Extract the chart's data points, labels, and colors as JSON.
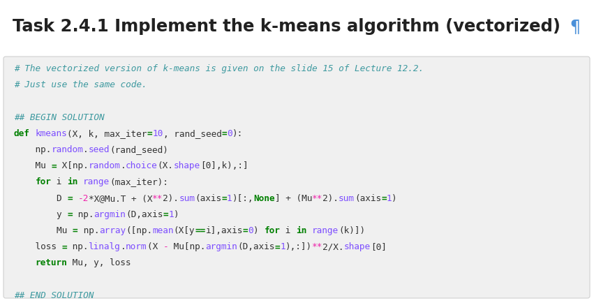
{
  "title": "Task 2.4.1 Implement the k-means algorithm (vectorized)",
  "pilcrow": " ¶",
  "title_color": "#212121",
  "pilcrow_color": "#4a90d9",
  "bg_color": "#ffffff",
  "code_bg_color": "#f0f0f0",
  "fig_width": 8.51,
  "fig_height": 4.34,
  "code_lines": [
    {
      "parts": [
        {
          "text": "# The vectorized version of k-means is given on the slide 15 of Lecture 12.2.",
          "color": "#3d999f",
          "style": "italic"
        }
      ]
    },
    {
      "parts": [
        {
          "text": "# Just use the same code.",
          "color": "#3d999f",
          "style": "italic"
        }
      ]
    },
    {
      "parts": []
    },
    {
      "parts": [
        {
          "text": "## BEGIN SOLUTION",
          "color": "#3d999f",
          "style": "italic"
        }
      ]
    },
    {
      "parts": [
        {
          "text": "def",
          "color": "#008000",
          "style": "bold"
        },
        {
          "text": " ",
          "color": "#333333",
          "style": "normal"
        },
        {
          "text": "kmeans",
          "color": "#7c4dff",
          "style": "normal"
        },
        {
          "text": "(X, k, max_iter",
          "color": "#333333",
          "style": "normal"
        },
        {
          "text": "=",
          "color": "#008000",
          "style": "bold"
        },
        {
          "text": "10",
          "color": "#7c4dff",
          "style": "normal"
        },
        {
          "text": ", rand_seed",
          "color": "#333333",
          "style": "normal"
        },
        {
          "text": "=",
          "color": "#008000",
          "style": "bold"
        },
        {
          "text": "0",
          "color": "#7c4dff",
          "style": "normal"
        },
        {
          "text": "):",
          "color": "#333333",
          "style": "normal"
        }
      ]
    },
    {
      "parts": [
        {
          "text": "    np.",
          "color": "#333333",
          "style": "normal"
        },
        {
          "text": "random",
          "color": "#7c4dff",
          "style": "normal"
        },
        {
          "text": ".",
          "color": "#333333",
          "style": "normal"
        },
        {
          "text": "seed",
          "color": "#7c4dff",
          "style": "normal"
        },
        {
          "text": "(rand_seed)",
          "color": "#333333",
          "style": "normal"
        }
      ]
    },
    {
      "parts": [
        {
          "text": "    Mu ",
          "color": "#333333",
          "style": "normal"
        },
        {
          "text": "=",
          "color": "#008000",
          "style": "bold"
        },
        {
          "text": " X[np.",
          "color": "#333333",
          "style": "normal"
        },
        {
          "text": "random",
          "color": "#7c4dff",
          "style": "normal"
        },
        {
          "text": ".",
          "color": "#333333",
          "style": "normal"
        },
        {
          "text": "choice",
          "color": "#7c4dff",
          "style": "normal"
        },
        {
          "text": "(X.",
          "color": "#333333",
          "style": "normal"
        },
        {
          "text": "shape",
          "color": "#7c4dff",
          "style": "normal"
        },
        {
          "text": "[0],k),:]",
          "color": "#333333",
          "style": "normal"
        }
      ]
    },
    {
      "parts": [
        {
          "text": "    ",
          "color": "#333333",
          "style": "normal"
        },
        {
          "text": "for",
          "color": "#008000",
          "style": "bold"
        },
        {
          "text": " i ",
          "color": "#333333",
          "style": "normal"
        },
        {
          "text": "in",
          "color": "#008000",
          "style": "bold"
        },
        {
          "text": " ",
          "color": "#333333",
          "style": "normal"
        },
        {
          "text": "range",
          "color": "#7c4dff",
          "style": "normal"
        },
        {
          "text": "(max_iter):",
          "color": "#333333",
          "style": "normal"
        }
      ]
    },
    {
      "parts": [
        {
          "text": "        D ",
          "color": "#333333",
          "style": "normal"
        },
        {
          "text": "=",
          "color": "#008000",
          "style": "bold"
        },
        {
          "text": " ",
          "color": "#333333",
          "style": "normal"
        },
        {
          "text": "-2",
          "color": "#ee22aa",
          "style": "normal"
        },
        {
          "text": "*X@Mu.T + (X",
          "color": "#333333",
          "style": "normal"
        },
        {
          "text": "**",
          "color": "#ee22aa",
          "style": "normal"
        },
        {
          "text": "2).",
          "color": "#333333",
          "style": "normal"
        },
        {
          "text": "sum",
          "color": "#7c4dff",
          "style": "normal"
        },
        {
          "text": "(axis",
          "color": "#333333",
          "style": "normal"
        },
        {
          "text": "=",
          "color": "#008000",
          "style": "bold"
        },
        {
          "text": "1",
          "color": "#7c4dff",
          "style": "normal"
        },
        {
          "text": ")[:,",
          "color": "#333333",
          "style": "normal"
        },
        {
          "text": "None",
          "color": "#008000",
          "style": "bold"
        },
        {
          "text": "] + (Mu",
          "color": "#333333",
          "style": "normal"
        },
        {
          "text": "**",
          "color": "#ee22aa",
          "style": "normal"
        },
        {
          "text": "2).",
          "color": "#333333",
          "style": "normal"
        },
        {
          "text": "sum",
          "color": "#7c4dff",
          "style": "normal"
        },
        {
          "text": "(axis",
          "color": "#333333",
          "style": "normal"
        },
        {
          "text": "=",
          "color": "#008000",
          "style": "bold"
        },
        {
          "text": "1",
          "color": "#7c4dff",
          "style": "normal"
        },
        {
          "text": ")",
          "color": "#333333",
          "style": "normal"
        }
      ]
    },
    {
      "parts": [
        {
          "text": "        y ",
          "color": "#333333",
          "style": "normal"
        },
        {
          "text": "=",
          "color": "#008000",
          "style": "bold"
        },
        {
          "text": " np.",
          "color": "#333333",
          "style": "normal"
        },
        {
          "text": "argmin",
          "color": "#7c4dff",
          "style": "normal"
        },
        {
          "text": "(D,axis",
          "color": "#333333",
          "style": "normal"
        },
        {
          "text": "=",
          "color": "#008000",
          "style": "bold"
        },
        {
          "text": "1",
          "color": "#7c4dff",
          "style": "normal"
        },
        {
          "text": ")",
          "color": "#333333",
          "style": "normal"
        }
      ]
    },
    {
      "parts": [
        {
          "text": "        Mu ",
          "color": "#333333",
          "style": "normal"
        },
        {
          "text": "=",
          "color": "#008000",
          "style": "bold"
        },
        {
          "text": " np.",
          "color": "#333333",
          "style": "normal"
        },
        {
          "text": "array",
          "color": "#7c4dff",
          "style": "normal"
        },
        {
          "text": "([np.",
          "color": "#333333",
          "style": "normal"
        },
        {
          "text": "mean",
          "color": "#7c4dff",
          "style": "normal"
        },
        {
          "text": "(X[y",
          "color": "#333333",
          "style": "normal"
        },
        {
          "text": "==",
          "color": "#008000",
          "style": "bold"
        },
        {
          "text": "i],axis",
          "color": "#333333",
          "style": "normal"
        },
        {
          "text": "=",
          "color": "#008000",
          "style": "bold"
        },
        {
          "text": "0",
          "color": "#7c4dff",
          "style": "normal"
        },
        {
          "text": ") ",
          "color": "#333333",
          "style": "normal"
        },
        {
          "text": "for",
          "color": "#008000",
          "style": "bold"
        },
        {
          "text": " i ",
          "color": "#333333",
          "style": "normal"
        },
        {
          "text": "in",
          "color": "#008000",
          "style": "bold"
        },
        {
          "text": " ",
          "color": "#333333",
          "style": "normal"
        },
        {
          "text": "range",
          "color": "#7c4dff",
          "style": "normal"
        },
        {
          "text": "(k)])",
          "color": "#333333",
          "style": "normal"
        }
      ]
    },
    {
      "parts": [
        {
          "text": "    loss ",
          "color": "#333333",
          "style": "normal"
        },
        {
          "text": "=",
          "color": "#008000",
          "style": "bold"
        },
        {
          "text": " np.",
          "color": "#333333",
          "style": "normal"
        },
        {
          "text": "linalg",
          "color": "#7c4dff",
          "style": "normal"
        },
        {
          "text": ".",
          "color": "#333333",
          "style": "normal"
        },
        {
          "text": "norm",
          "color": "#7c4dff",
          "style": "normal"
        },
        {
          "text": "(X ",
          "color": "#333333",
          "style": "normal"
        },
        {
          "text": "-",
          "color": "#ee22aa",
          "style": "normal"
        },
        {
          "text": " Mu[np.",
          "color": "#333333",
          "style": "normal"
        },
        {
          "text": "argmin",
          "color": "#7c4dff",
          "style": "normal"
        },
        {
          "text": "(D,axis",
          "color": "#333333",
          "style": "normal"
        },
        {
          "text": "=",
          "color": "#008000",
          "style": "bold"
        },
        {
          "text": "1",
          "color": "#7c4dff",
          "style": "normal"
        },
        {
          "text": "),:])",
          "color": "#333333",
          "style": "normal"
        },
        {
          "text": "**",
          "color": "#ee22aa",
          "style": "normal"
        },
        {
          "text": "2/X.",
          "color": "#333333",
          "style": "normal"
        },
        {
          "text": "shape",
          "color": "#7c4dff",
          "style": "normal"
        },
        {
          "text": "[0]",
          "color": "#333333",
          "style": "normal"
        }
      ]
    },
    {
      "parts": [
        {
          "text": "    ",
          "color": "#333333",
          "style": "normal"
        },
        {
          "text": "return",
          "color": "#008000",
          "style": "bold"
        },
        {
          "text": " Mu, y, loss",
          "color": "#333333",
          "style": "normal"
        }
      ]
    },
    {
      "parts": []
    },
    {
      "parts": [
        {
          "text": "## END SOLUTION",
          "color": "#3d999f",
          "style": "italic"
        }
      ]
    }
  ]
}
